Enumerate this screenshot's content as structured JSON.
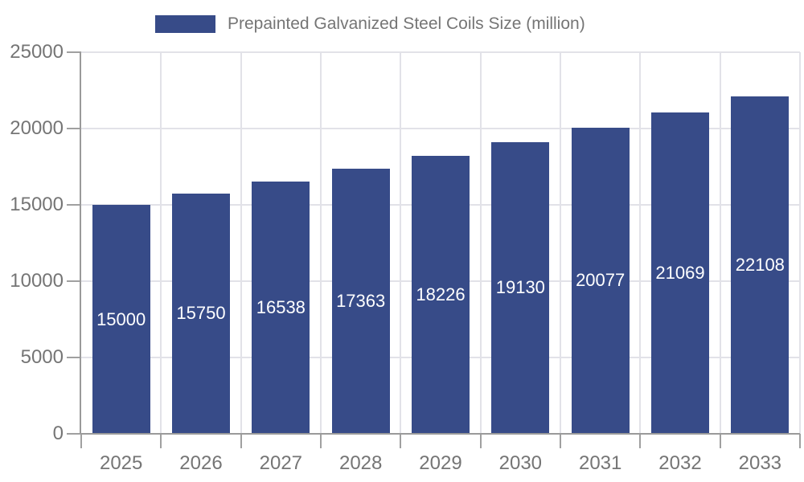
{
  "chart_data": {
    "type": "bar",
    "title": "Prepainted Galvanized Steel Coils Size (million)",
    "categories": [
      "2025",
      "2026",
      "2027",
      "2028",
      "2029",
      "2030",
      "2031",
      "2032",
      "2033"
    ],
    "values": [
      15000,
      15750,
      16538,
      17363,
      18226,
      19130,
      20077,
      21069,
      22108
    ],
    "xlabel": "",
    "ylabel": "",
    "ylim": [
      0,
      25000
    ],
    "y_ticks": [
      0,
      5000,
      10000,
      15000,
      20000,
      25000
    ],
    "grid": true,
    "legend_position": "top",
    "value_labels": "inside-center",
    "colors": {
      "bar": "#374B88",
      "grid": "#E2E2E8",
      "axis": "#9A9A9A",
      "tick": "#A0A0A0",
      "tick_label": "#757575",
      "legend_text": "#757575",
      "value_label": "#FFFFFF"
    }
  }
}
